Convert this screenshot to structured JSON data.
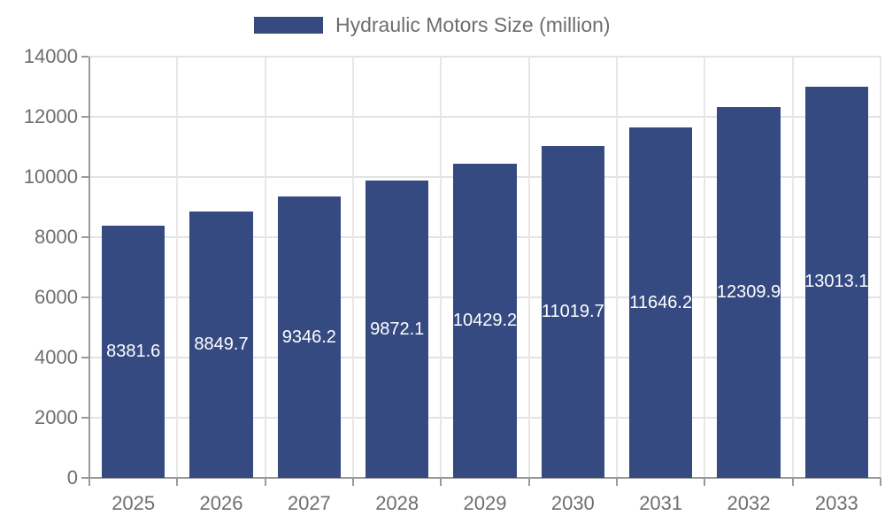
{
  "chart_data": {
    "type": "bar",
    "legend": "Hydraulic Motors Size (million)",
    "legend_position": "top",
    "categories": [
      "2025",
      "2026",
      "2027",
      "2028",
      "2029",
      "2030",
      "2031",
      "2032",
      "2033"
    ],
    "values": [
      8381.6,
      8849.7,
      9346.2,
      9872.1,
      10429.2,
      11019.7,
      11646.2,
      12309.9,
      13013.1
    ],
    "yticks": [
      0,
      2000,
      4000,
      6000,
      8000,
      10000,
      12000,
      14000
    ],
    "ylim": [
      0,
      14000
    ],
    "xlabel": "",
    "ylabel": "",
    "grid": true,
    "bar_color": "#364a82",
    "bar_label_color": "#ffffff",
    "axis_text_color": "#6e6e6e",
    "grid_color": "#e3e3e3",
    "axis_line_color": "#9a9a9a"
  }
}
